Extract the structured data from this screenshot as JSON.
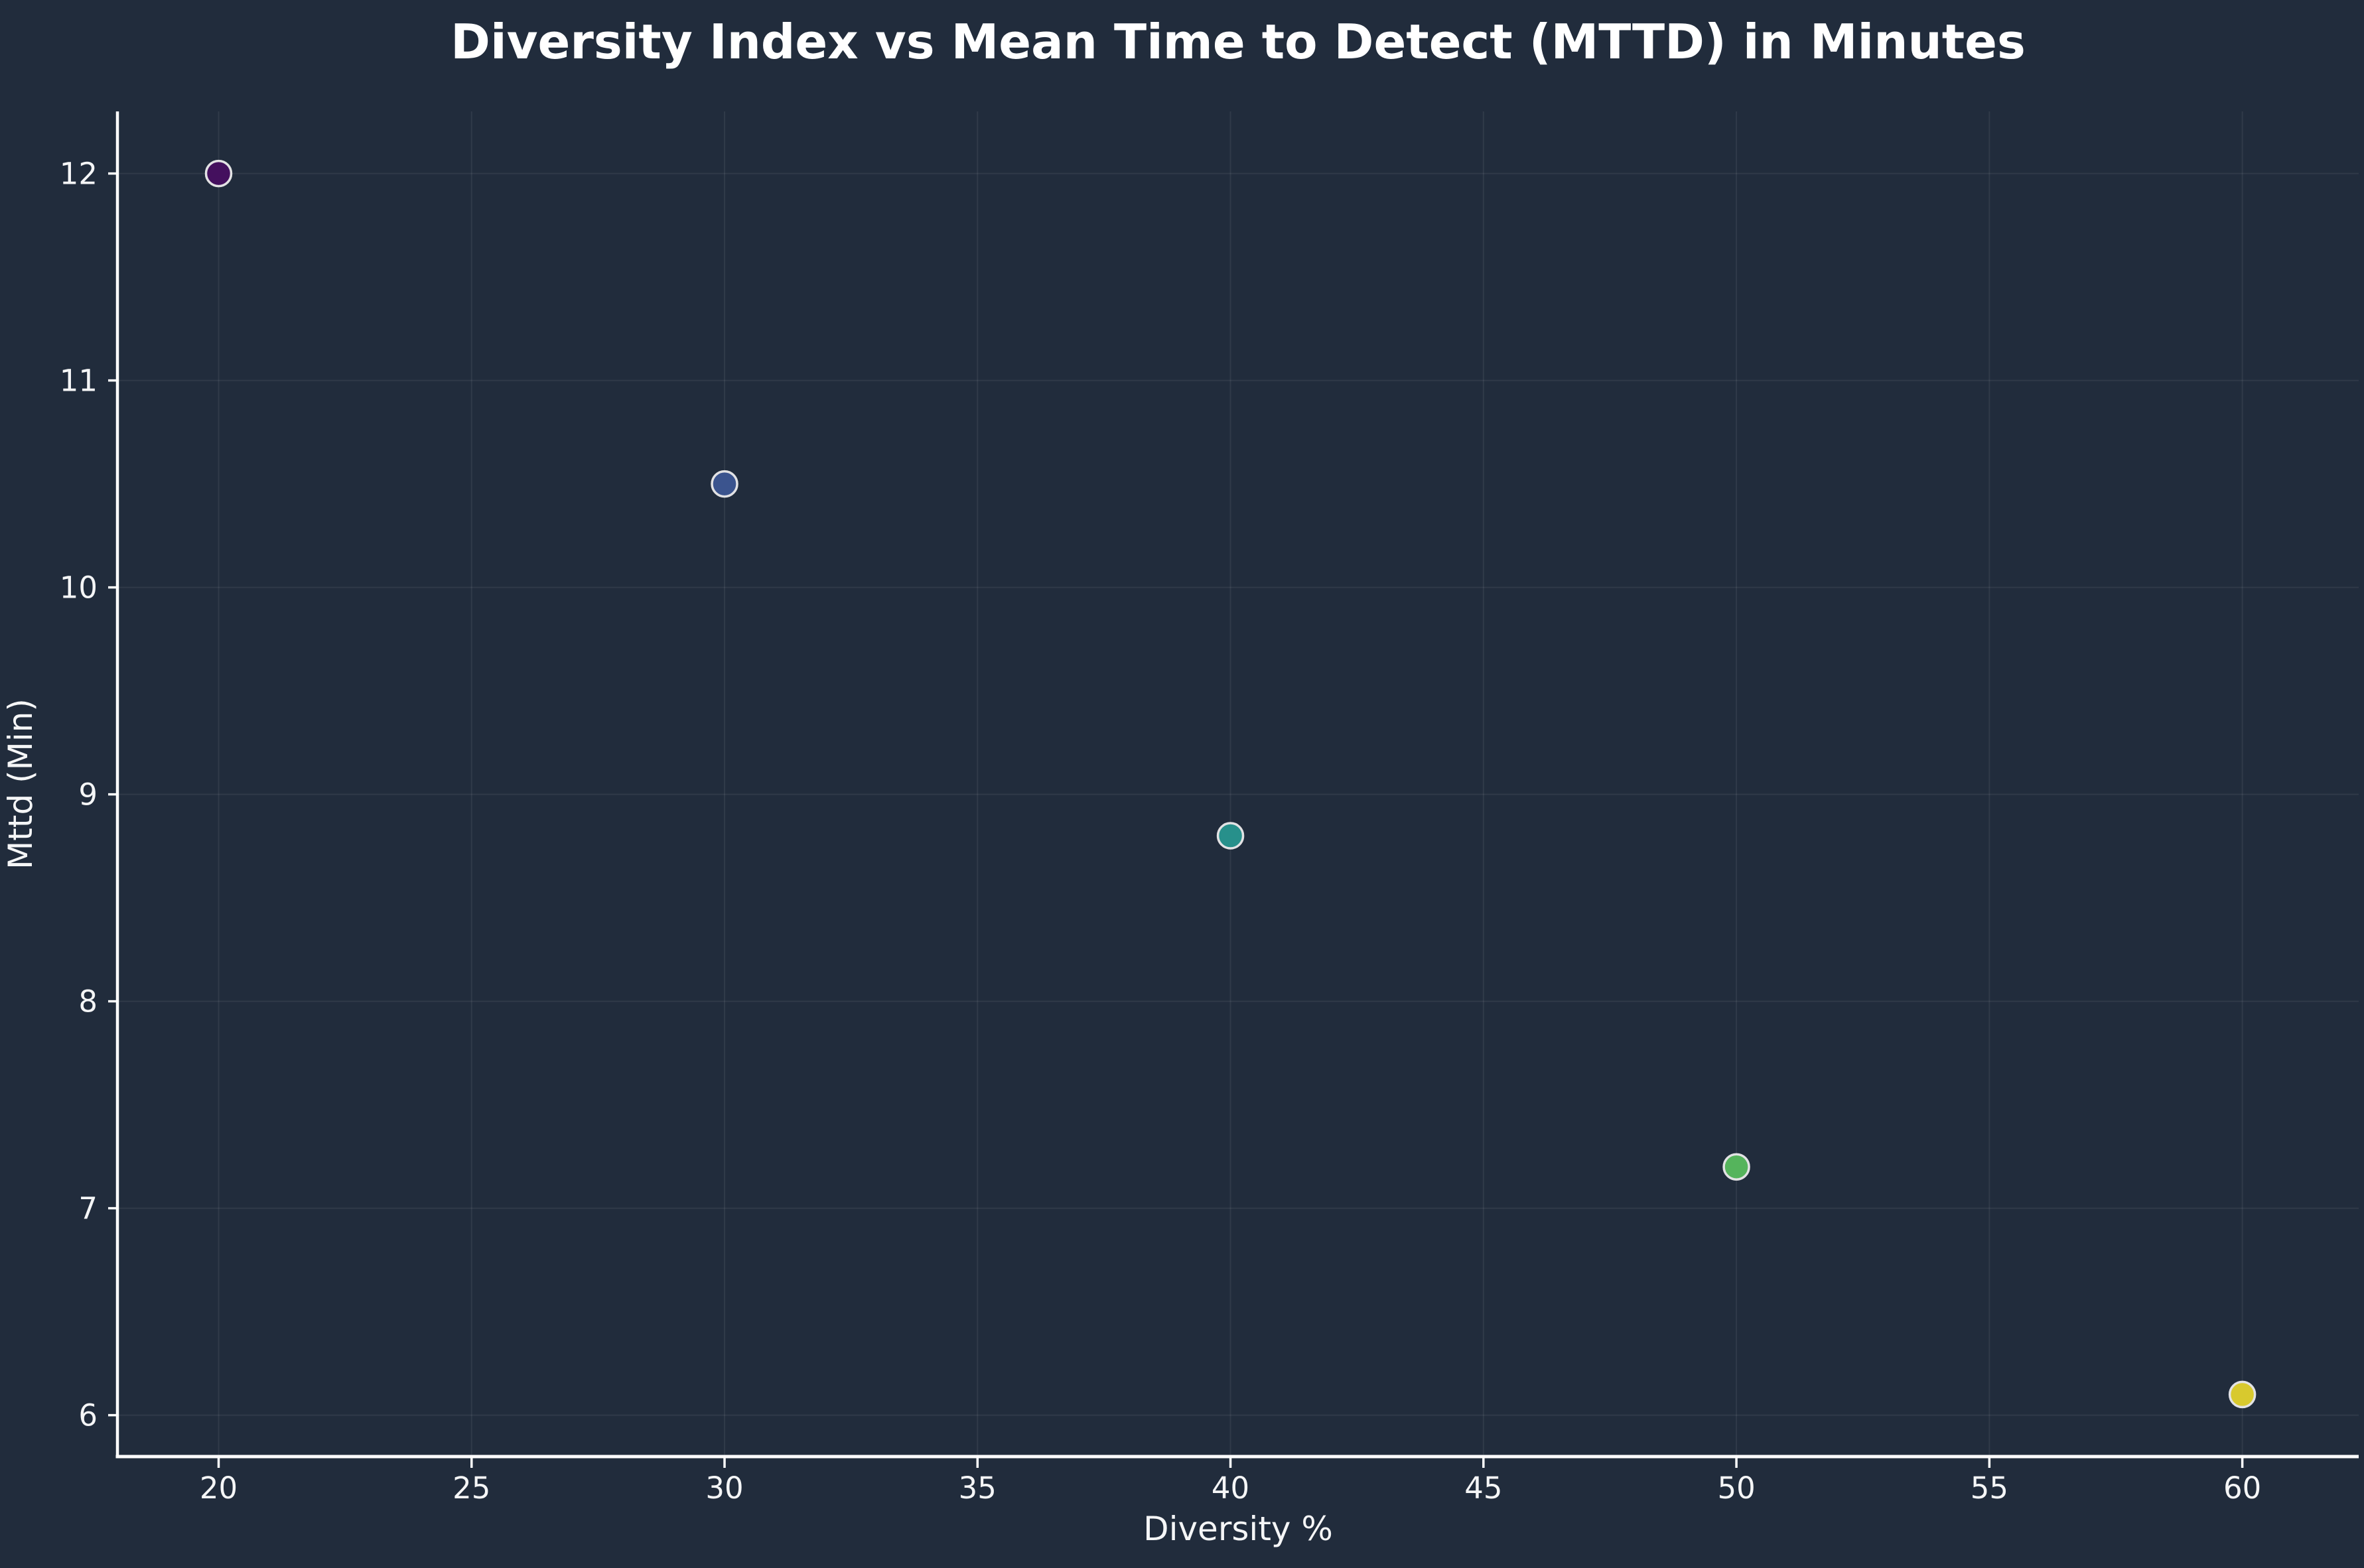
{
  "figure": {
    "background": "#212c3c",
    "title_color": "#ffffff",
    "text_color": "#f5f6f7",
    "axis_color": "#ffffff",
    "grid_color": "rgba(255,255,255,0.07)"
  },
  "chart_data": {
    "type": "scatter",
    "title": "Diversity Index vs Mean Time to Detect (MTTD) in Minutes",
    "xlabel": "Diversity %",
    "ylabel": "Mttd (Min)",
    "x": [
      20,
      30,
      40,
      50,
      60
    ],
    "y": [
      12.0,
      10.5,
      8.8,
      7.2,
      6.1
    ],
    "point_colors": [
      "#44105e",
      "#3b548e",
      "#27908b",
      "#55b45c",
      "#d8c92e"
    ],
    "point_edge_color": "#e2e2e4",
    "xticks": [
      20,
      25,
      30,
      35,
      40,
      45,
      50,
      55,
      60
    ],
    "yticks": [
      6,
      7,
      8,
      9,
      10,
      11,
      12
    ],
    "xlim": [
      18.0,
      62.3
    ],
    "ylim": [
      5.8,
      12.3
    ],
    "grid": true,
    "legend": false,
    "series_name": "mttd-vs-diversity"
  }
}
